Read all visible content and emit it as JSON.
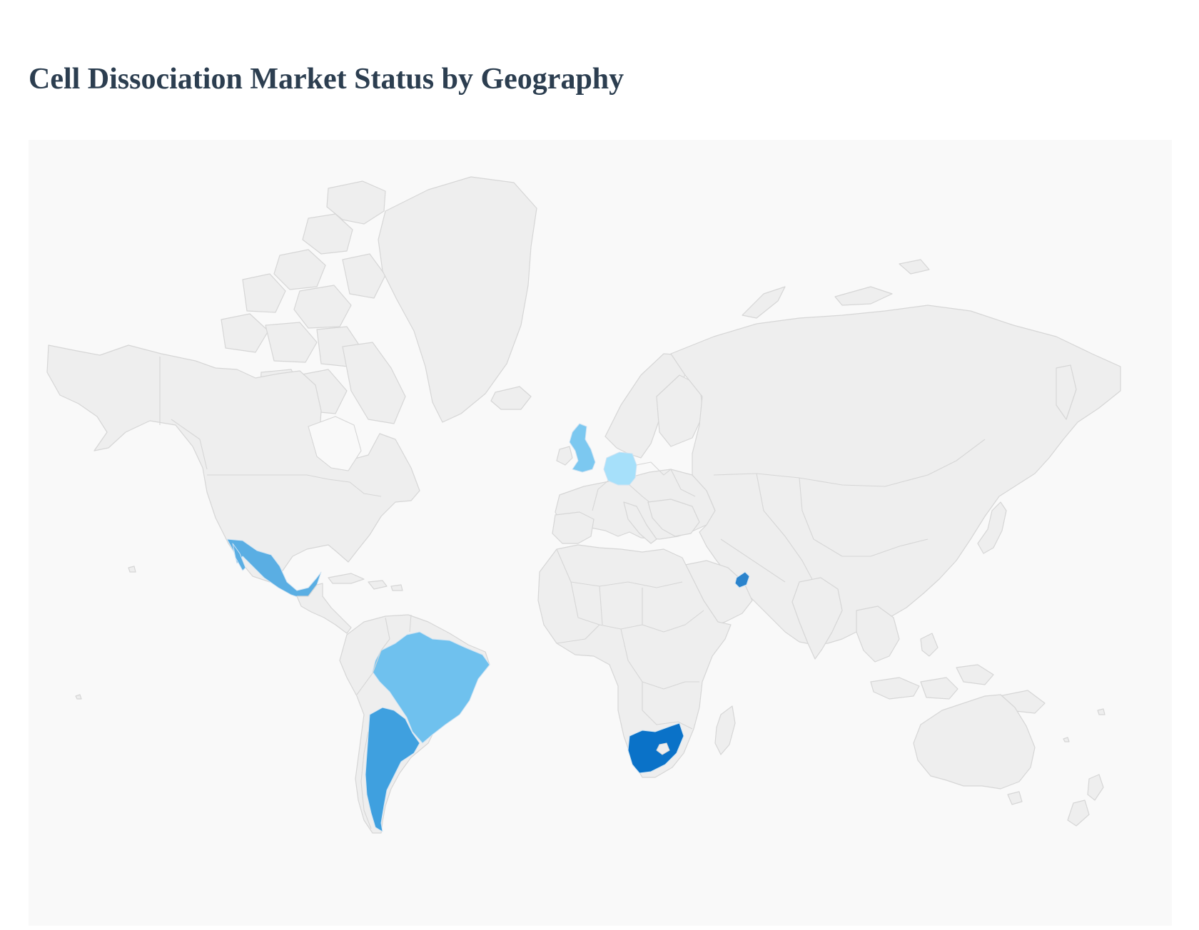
{
  "page": {
    "title": "Cell Dissociation Market Status by Geography"
  },
  "map": {
    "background": "#f9f9f9",
    "land_color": "#eeeeee",
    "border_color": "#d6d6d6",
    "highlighted_regions": [
      {
        "name": "mexico",
        "color": "#5aaee3"
      },
      {
        "name": "brazil",
        "color": "#6fc1ee"
      },
      {
        "name": "argentina",
        "color": "#3fa0df"
      },
      {
        "name": "united-kingdom",
        "color": "#7cc8f0"
      },
      {
        "name": "germany",
        "color": "#a6e0fa"
      },
      {
        "name": "united-arab-emirates",
        "color": "#2a83cc"
      },
      {
        "name": "south-africa",
        "color": "#0a72c8"
      }
    ]
  }
}
